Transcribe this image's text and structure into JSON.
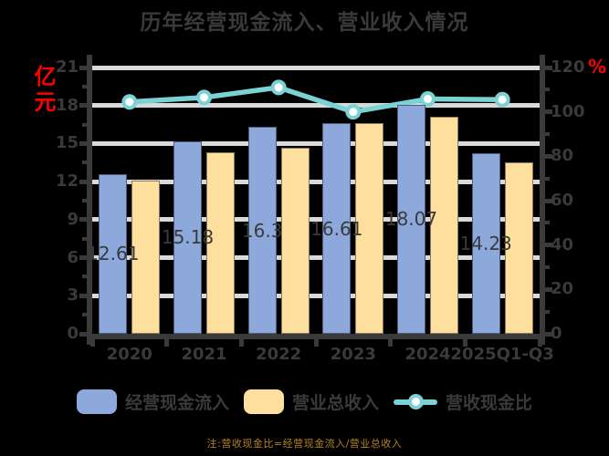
{
  "title": "历年经营现金流入、营业收入情况",
  "footer_note": "注:营收现金比=经营现金流入/营业总收入",
  "colors": {
    "background": "#000000",
    "text": "#3a3a3a",
    "axis": "#3a3a3a",
    "grid": "#d9d9d9",
    "accent_red": "#ff0000",
    "footer": "#b5831f",
    "bar_blue": "#8da9dc",
    "bar_yellow": "#ffdf9e",
    "line_teal": "#7ad2d4"
  },
  "chart_data": {
    "type": "bar",
    "subtype": "grouped-bars-with-line",
    "categories": [
      "2020",
      "2021",
      "2022",
      "2023",
      "2024",
      "2025Q1-Q3"
    ],
    "series": [
      {
        "name": "经营现金流入",
        "type": "bar",
        "color": "#8da9dc",
        "axis": "left",
        "values": [
          12.61,
          15.18,
          16.3,
          16.61,
          18.07,
          14.23
        ],
        "labels": [
          "12.61",
          "15.18",
          "16.3",
          "16.61",
          "18.07",
          "14.23"
        ]
      },
      {
        "name": "营业总收入",
        "type": "bar",
        "color": "#ffdf9e",
        "axis": "left",
        "values": [
          12.1,
          14.3,
          14.7,
          16.6,
          17.1,
          13.5
        ]
      }
    ],
    "line_series": {
      "name": "营收现金比",
      "type": "line",
      "color": "#7ad2d4",
      "axis": "right",
      "values": [
        104.5,
        106.5,
        111,
        100,
        105.8,
        105.5
      ]
    },
    "left_axis": {
      "unit": "亿元",
      "unit_color": "#ff0000",
      "min": 0,
      "max": 21,
      "ticks": [
        0,
        3,
        6,
        9,
        12,
        15,
        18,
        21
      ]
    },
    "right_axis": {
      "unit": "%",
      "unit_color": "#ff0000",
      "min": 0,
      "max": 120,
      "ticks": [
        0,
        20,
        40,
        60,
        80,
        100,
        120
      ]
    },
    "grid": true,
    "legend_position": "bottom"
  }
}
